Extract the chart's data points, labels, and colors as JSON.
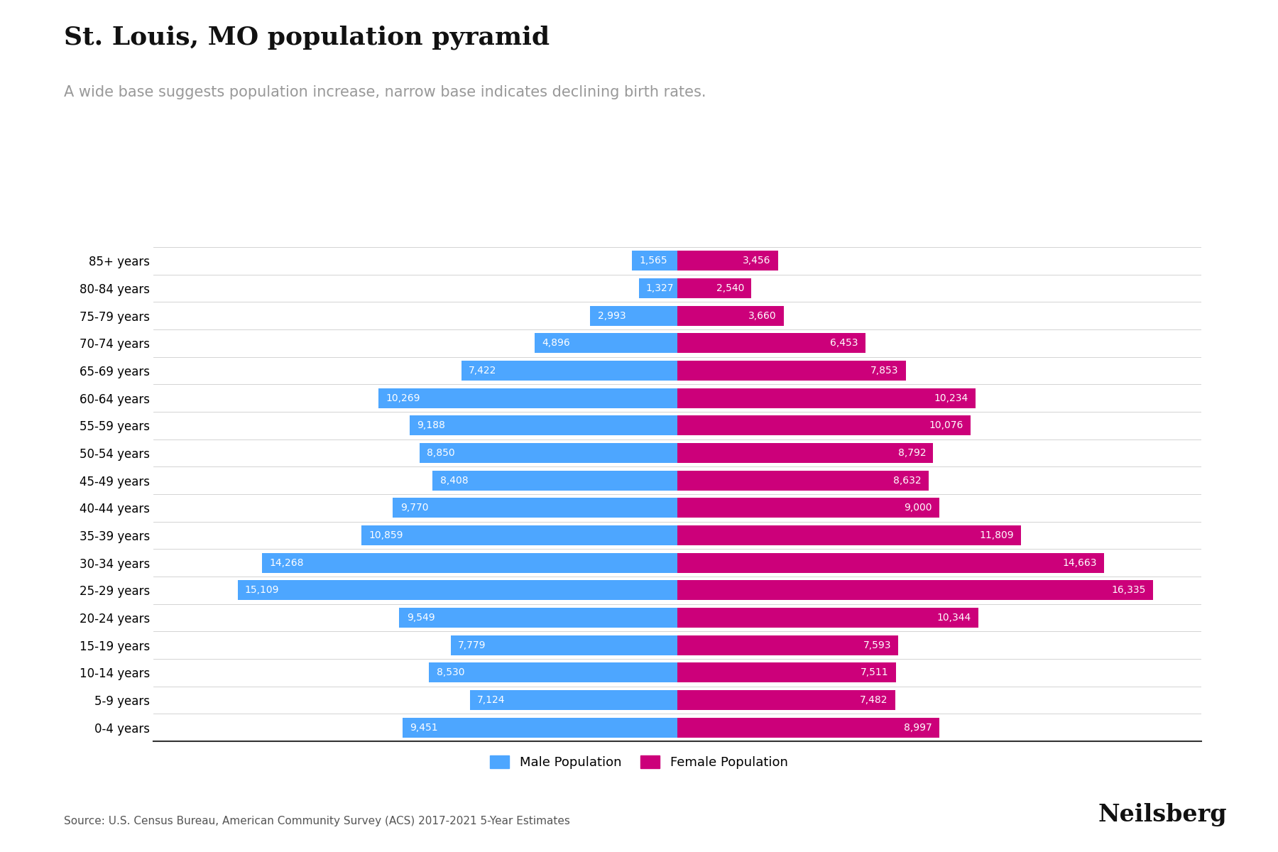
{
  "title": "St. Louis, MO population pyramid",
  "subtitle": "A wide base suggests population increase, narrow base indicates declining birth rates.",
  "source": "Source: U.S. Census Bureau, American Community Survey (ACS) 2017-2021 5-Year Estimates",
  "branding": "Neilsberg",
  "age_groups": [
    "0-4 years",
    "5-9 years",
    "10-14 years",
    "15-19 years",
    "20-24 years",
    "25-29 years",
    "30-34 years",
    "35-39 years",
    "40-44 years",
    "45-49 years",
    "50-54 years",
    "55-59 years",
    "60-64 years",
    "65-69 years",
    "70-74 years",
    "75-79 years",
    "80-84 years",
    "85+ years"
  ],
  "male": [
    9451,
    7124,
    8530,
    7779,
    9549,
    15109,
    14268,
    10859,
    9770,
    8408,
    8850,
    9188,
    10269,
    7422,
    4896,
    2993,
    1327,
    1565
  ],
  "female": [
    8997,
    7482,
    7511,
    7593,
    10344,
    16335,
    14663,
    11809,
    9000,
    8632,
    8792,
    10076,
    10234,
    7853,
    6453,
    3660,
    2540,
    3456
  ],
  "male_color": "#4da6ff",
  "female_color": "#cc007a",
  "background_color": "#ffffff",
  "bar_height": 0.72,
  "title_fontsize": 26,
  "subtitle_fontsize": 15,
  "tick_fontsize": 12,
  "label_fontsize": 10,
  "legend_fontsize": 13,
  "source_fontsize": 11,
  "branding_fontsize": 24,
  "xlim": 18000
}
